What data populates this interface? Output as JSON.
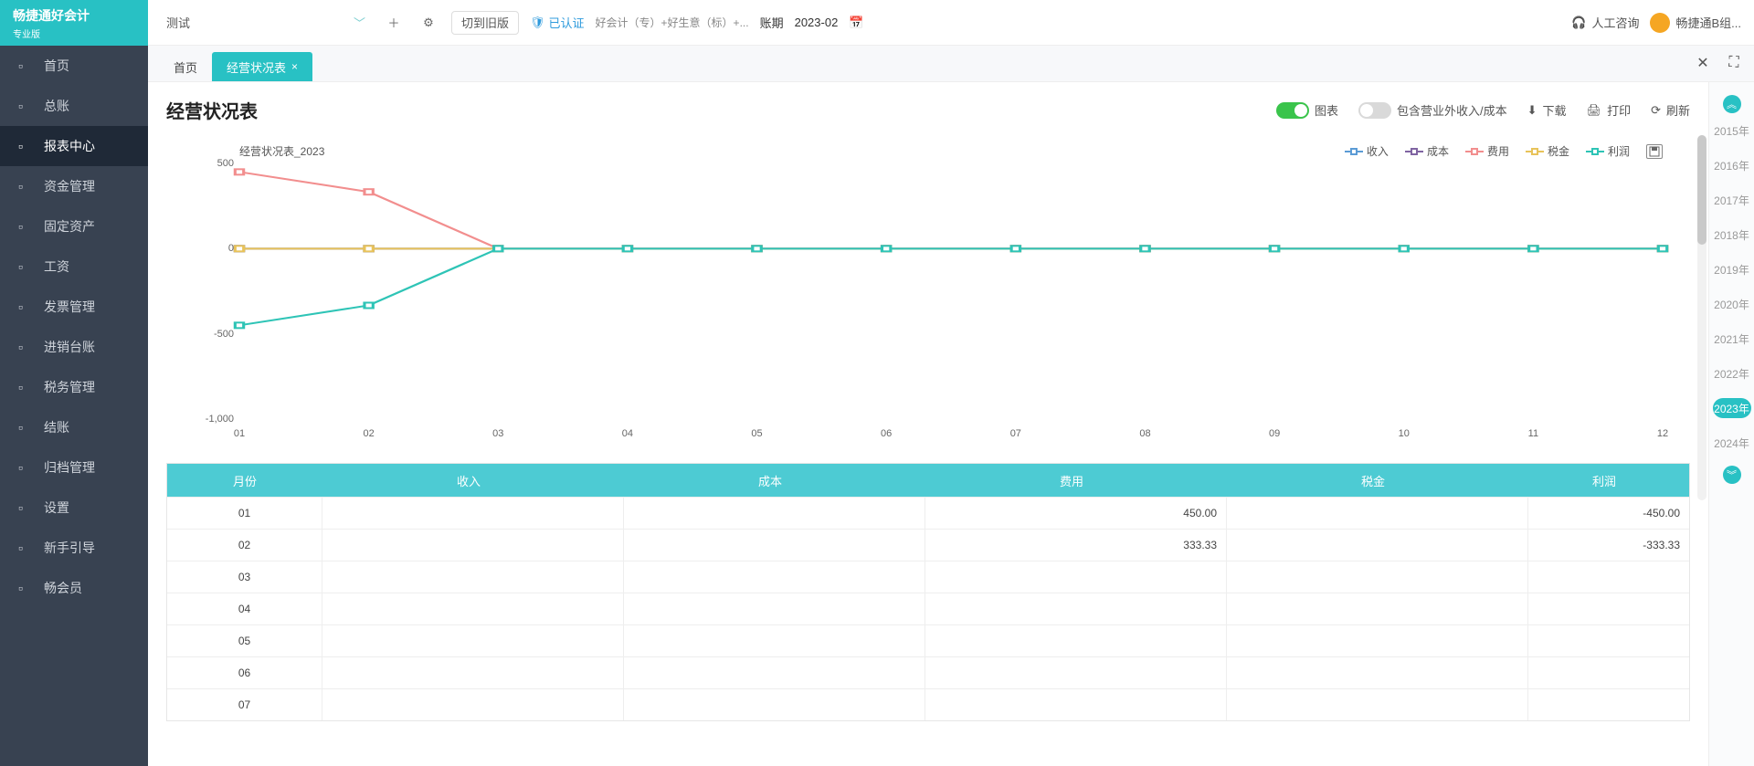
{
  "brand": {
    "name": "畅捷通好会计",
    "edition": "专业版"
  },
  "nav": [
    {
      "label": "首页"
    },
    {
      "label": "总账"
    },
    {
      "label": "报表中心",
      "active": true
    },
    {
      "label": "资金管理"
    },
    {
      "label": "固定资产"
    },
    {
      "label": "工资"
    },
    {
      "label": "发票管理"
    },
    {
      "label": "进销台账"
    },
    {
      "label": "税务管理"
    },
    {
      "label": "结账"
    },
    {
      "label": "归档管理"
    },
    {
      "label": "设置"
    },
    {
      "label": "新手引导"
    },
    {
      "label": "畅会员"
    }
  ],
  "topbar": {
    "company": "测试",
    "switch_old": "切到旧版",
    "verified": "已认证",
    "plan": "好会计（专）+好生意（标）+...",
    "period_label": "账期",
    "period_value": "2023-02",
    "support": "人工咨询",
    "user": "畅捷通B组..."
  },
  "tabs": {
    "home": "首页",
    "active": "经营状况表"
  },
  "page": {
    "title": "经营状况表",
    "toggle_chart": "图表",
    "toggle_extra": "包含营业外收入/成本",
    "download": "下载",
    "print": "打印",
    "refresh": "刷新"
  },
  "chart": {
    "title": "经营状况表_2023",
    "type": "line",
    "x_categories": [
      "01",
      "02",
      "03",
      "04",
      "05",
      "06",
      "07",
      "08",
      "09",
      "10",
      "11",
      "12"
    ],
    "y_ticks": [
      500,
      0,
      -500,
      -1000
    ],
    "ylim": [
      -1000,
      500
    ],
    "series": {
      "revenue": {
        "label": "收入",
        "color": "#5b9bd5",
        "values": [
          0,
          0,
          0,
          0,
          0,
          0,
          0,
          0,
          0,
          0,
          0,
          0
        ]
      },
      "cost": {
        "label": "成本",
        "color": "#8064a2",
        "values": [
          0,
          0,
          0,
          0,
          0,
          0,
          0,
          0,
          0,
          0,
          0,
          0
        ]
      },
      "fee": {
        "label": "费用",
        "color": "#f28e8e",
        "values": [
          450,
          333,
          0,
          0,
          0,
          0,
          0,
          0,
          0,
          0,
          0,
          0
        ]
      },
      "tax": {
        "label": "税金",
        "color": "#e8c35a",
        "values": [
          0,
          0,
          0,
          0,
          0,
          0,
          0,
          0,
          0,
          0,
          0,
          0
        ]
      },
      "profit": {
        "label": "利润",
        "color": "#2ec4b6",
        "values": [
          -450,
          -333,
          0,
          0,
          0,
          0,
          0,
          0,
          0,
          0,
          0,
          0
        ]
      }
    },
    "background": "#ffffff",
    "axis_color": "#888888",
    "marker": "square-open"
  },
  "table": {
    "columns": [
      "月份",
      "收入",
      "成本",
      "费用",
      "税金",
      "利润"
    ],
    "rows": [
      {
        "month": "01",
        "revenue": "",
        "cost": "",
        "fee": "450.00",
        "tax": "",
        "profit": "-450.00"
      },
      {
        "month": "02",
        "revenue": "",
        "cost": "",
        "fee": "333.33",
        "tax": "",
        "profit": "-333.33"
      },
      {
        "month": "03",
        "revenue": "",
        "cost": "",
        "fee": "",
        "tax": "",
        "profit": ""
      },
      {
        "month": "04",
        "revenue": "",
        "cost": "",
        "fee": "",
        "tax": "",
        "profit": ""
      },
      {
        "month": "05",
        "revenue": "",
        "cost": "",
        "fee": "",
        "tax": "",
        "profit": ""
      },
      {
        "month": "06",
        "revenue": "",
        "cost": "",
        "fee": "",
        "tax": "",
        "profit": ""
      },
      {
        "month": "07",
        "revenue": "",
        "cost": "",
        "fee": "",
        "tax": "",
        "profit": ""
      }
    ]
  },
  "year_rail": {
    "years": [
      "2015年",
      "2016年",
      "2017年",
      "2018年",
      "2019年",
      "2020年",
      "2021年",
      "2022年",
      "2023年",
      "2024年"
    ],
    "active": "2023年"
  }
}
